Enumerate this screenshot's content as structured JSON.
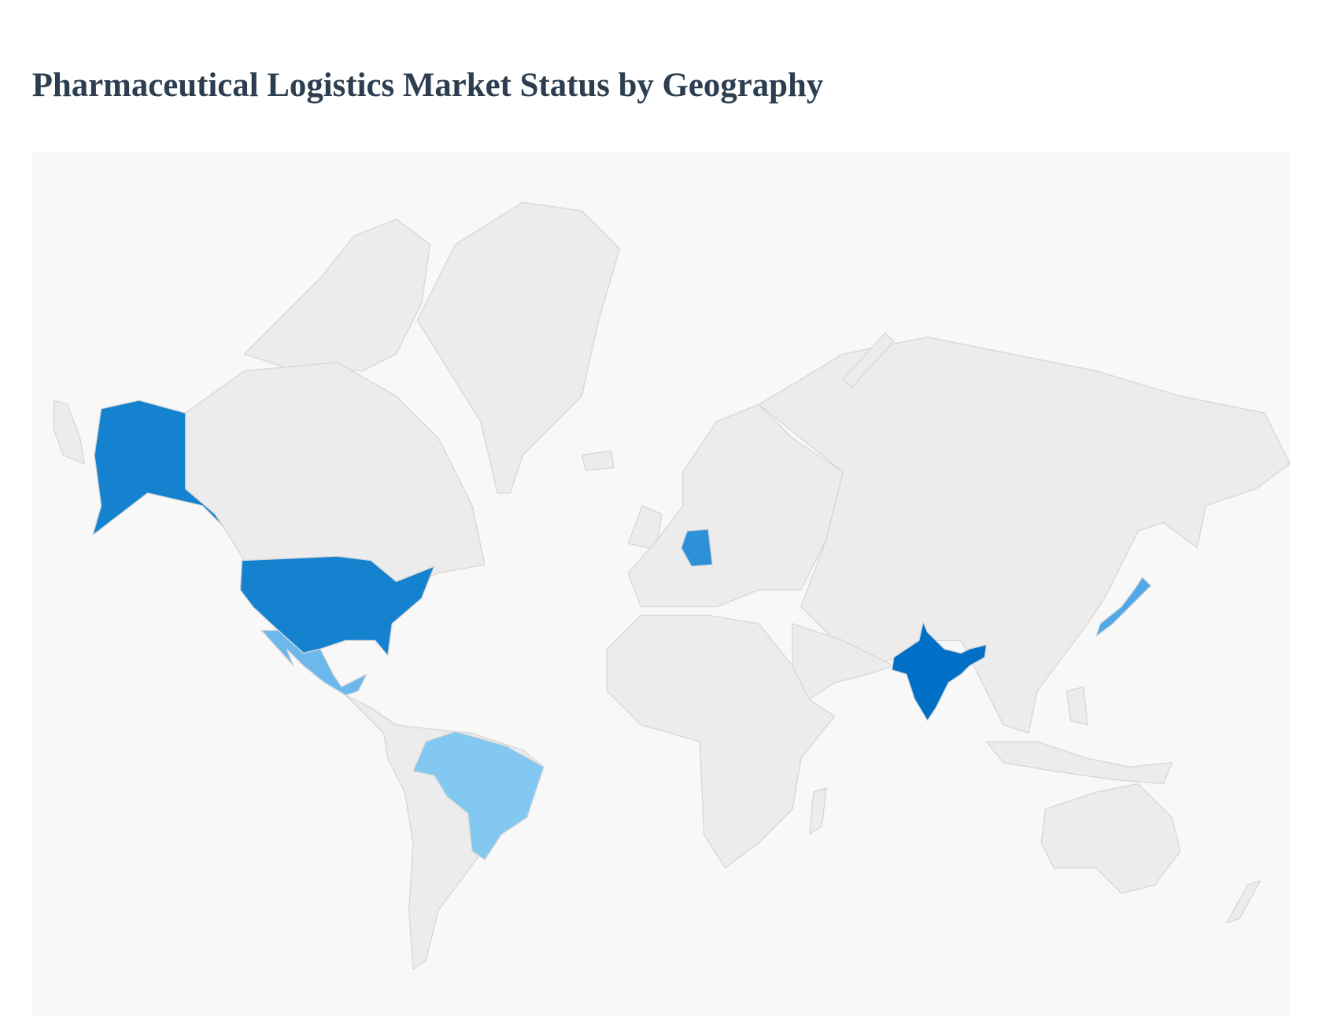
{
  "title": "Pharmaceutical Logistics Market Status by Geography",
  "map": {
    "base_color": "#ececec",
    "background": "#f8f8f8",
    "highlight_colors": [
      "#1582d0",
      "#6cb8ed",
      "#82c8f0",
      "#2f90da",
      "#0070c6",
      "#50a8e8"
    ]
  }
}
